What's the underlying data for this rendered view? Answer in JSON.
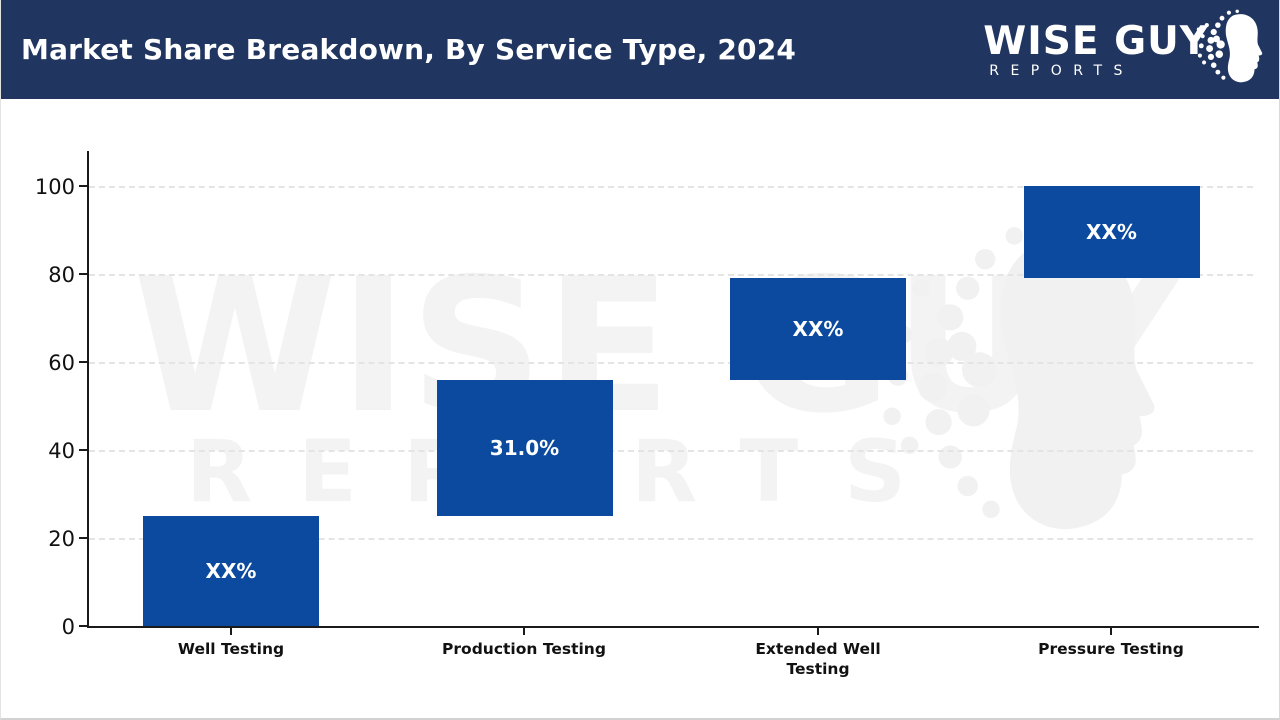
{
  "header": {
    "title": "Market Share Breakdown, By Service Type, 2024",
    "logo": {
      "line1": "WISE GUY",
      "line2": "REPORTS"
    }
  },
  "watermark": {
    "line1": "WISE GUY",
    "line2": "REPORTS"
  },
  "chart_data": {
    "type": "bar",
    "subtype": "floating-waterfall",
    "title": "Market Share Breakdown, By Service Type, 2024",
    "categories": [
      "Well Testing",
      "Production Testing",
      "Extended Well Testing",
      "Pressure Testing"
    ],
    "segments": [
      {
        "category": "Well Testing",
        "start": 0,
        "end": 25,
        "label": "XX%"
      },
      {
        "category": "Production Testing",
        "start": 25,
        "end": 56,
        "label": "31.0%"
      },
      {
        "category": "Extended Well Testing",
        "start": 56,
        "end": 79,
        "label": "XX%"
      },
      {
        "category": "Pressure Testing",
        "start": 79,
        "end": 100,
        "label": "XX%"
      }
    ],
    "xlabel": "",
    "ylabel": "",
    "yticks": [
      0,
      20,
      40,
      60,
      80,
      100
    ],
    "ylim": [
      0,
      108
    ],
    "grid": "horizontal-dashed",
    "legend": false
  },
  "colors": {
    "header_bg": "#203560",
    "bar": "#0b4a9e",
    "bar_label": "#ffffff",
    "title_text": "#ffffff",
    "watermark": "#f3f3f3",
    "grid": "#e4e4e4",
    "axis": "#1a1a1a"
  }
}
